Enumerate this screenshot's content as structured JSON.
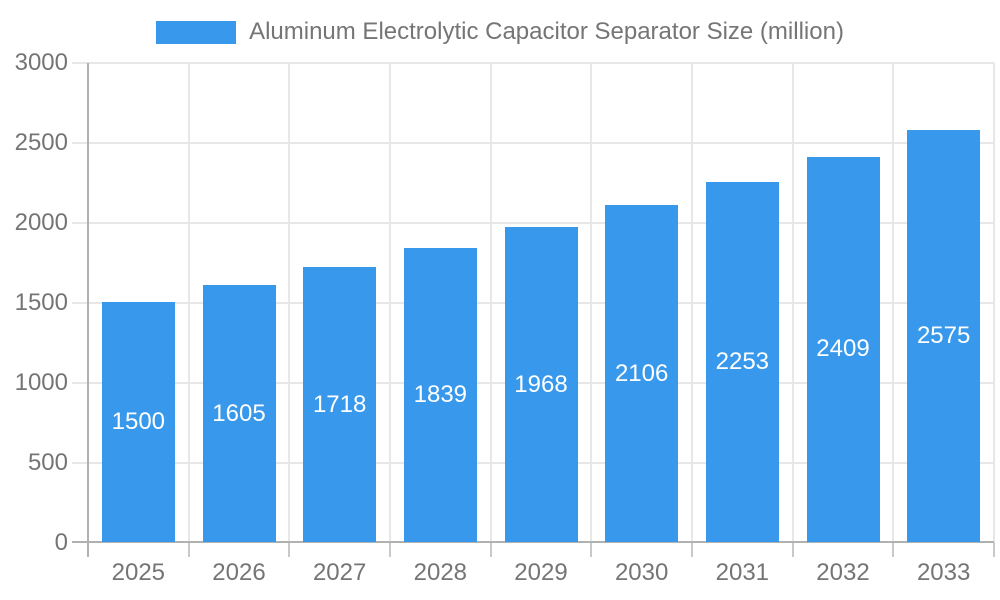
{
  "chart_data": {
    "type": "bar",
    "title": "Aluminum Electrolytic Capacitor Separator Size (million)",
    "categories": [
      "2025",
      "2026",
      "2027",
      "2028",
      "2029",
      "2030",
      "2031",
      "2032",
      "2033"
    ],
    "values": [
      1500,
      1605,
      1718,
      1839,
      1968,
      2106,
      2253,
      2409,
      2575
    ],
    "xlabel": "",
    "ylabel": "",
    "ylim": [
      0,
      3000
    ],
    "ytick_step": 500,
    "yticks": [
      "0",
      "500",
      "1000",
      "1500",
      "2000",
      "2500",
      "3000"
    ],
    "grid": true,
    "legend_position": "top",
    "bar_color": "#3899EC",
    "value_label_color": "#ffffff",
    "axis_label_color": "#757575",
    "grid_color": "#e7e7e7",
    "axis_line_color": "#b1b1b1",
    "tick_color": "#c9c9c9"
  }
}
